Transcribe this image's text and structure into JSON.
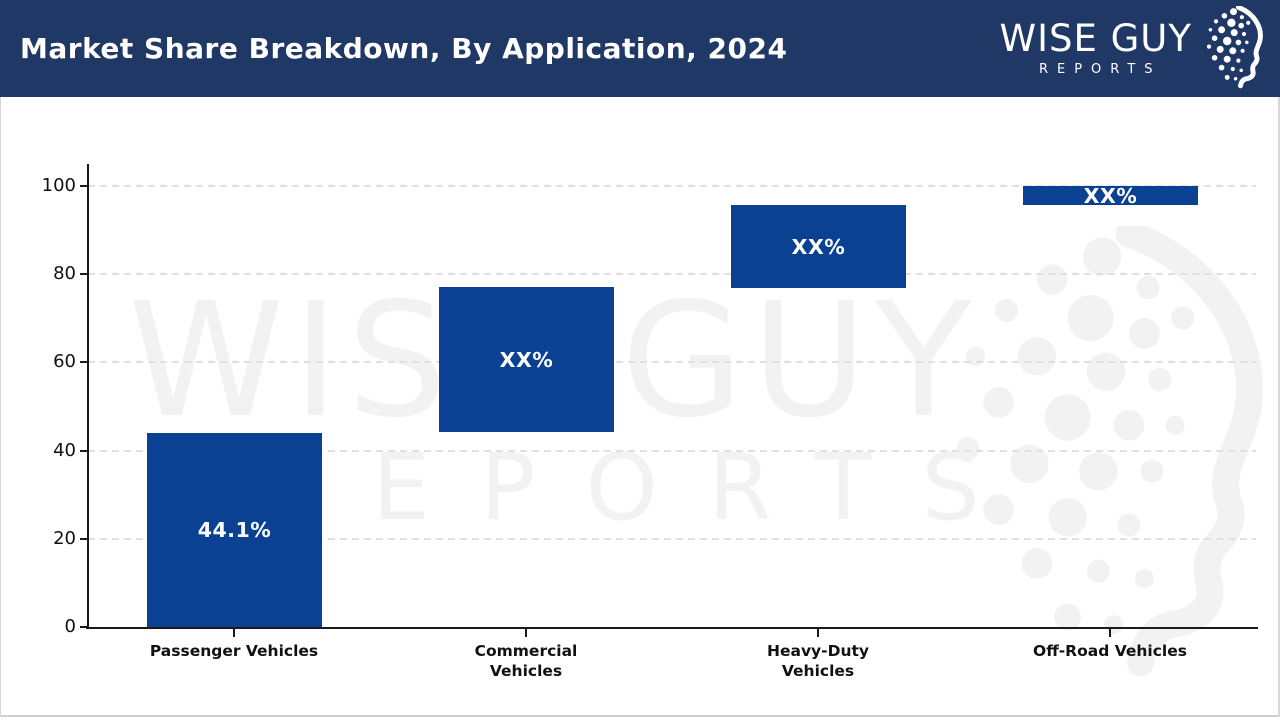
{
  "header": {
    "title": "Market Share Breakdown, By Application, 2024",
    "logo": {
      "line1": "WISE GUY",
      "line2": "REPORTS"
    }
  },
  "watermark": {
    "line1": "WISE GUY",
    "line2": "REPORTS"
  },
  "colors": {
    "header_bg": "#1f3866",
    "header_text": "#ffffff",
    "bar": "#0a4193",
    "bar_label_text": "#ffffff",
    "axis": "#1a1a1a",
    "gridline": "#e0e0e0",
    "watermark": "#f2f2f2",
    "page_border": "#cfcfcf"
  },
  "chart_data": {
    "type": "bar",
    "subtype": "waterfall",
    "title": "Market Share Breakdown, By Application, 2024",
    "categories": [
      "Passenger Vehicles",
      "Commercial Vehicles",
      "Heavy-Duty Vehicles",
      "Off-Road Vehicles"
    ],
    "tick_label_lines": [
      [
        "Passenger Vehicles"
      ],
      [
        "Commercial",
        "Vehicles"
      ],
      [
        "Heavy-Duty",
        "Vehicles"
      ],
      [
        "Off-Road Vehicles"
      ]
    ],
    "bar_labels": [
      "44.1%",
      "XX%",
      "XX%",
      "XX%"
    ],
    "segments": [
      {
        "start": 0,
        "end": 44.1
      },
      {
        "start": 44.1,
        "end": 77.0
      },
      {
        "start": 77.0,
        "end": 95.8
      },
      {
        "start": 95.8,
        "end": 100.0
      }
    ],
    "values_estimated": [
      44.1,
      32.9,
      18.8,
      4.2
    ],
    "xlabel": "",
    "ylabel": "",
    "ylim": [
      0,
      100
    ],
    "yticks": [
      0,
      20,
      40,
      60,
      80,
      100
    ],
    "grid": "horizontal-dashed",
    "legend": "none"
  }
}
